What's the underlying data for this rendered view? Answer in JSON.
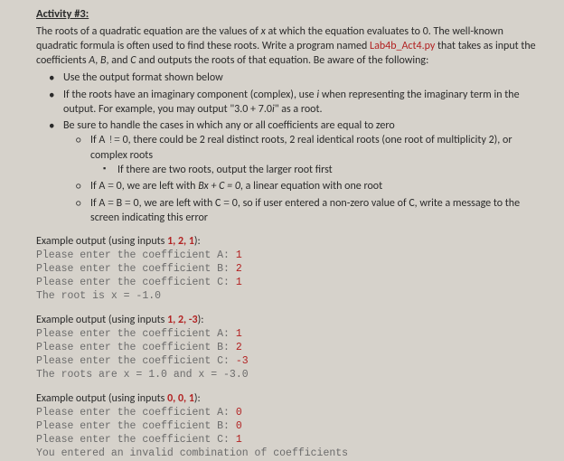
{
  "title": "Activity #3:",
  "intro_parts": {
    "p1": "The roots of a quadratic equation are the values of ",
    "x_var": "x",
    "p2": " at which the equation evaluates to 0. The well-known quadratic formula is often used to find these roots. Write a program named ",
    "filename": "Lab4b_Act4.py",
    "p3": " that takes as input the coefficients ",
    "A": "A",
    "c1": ", ",
    "B": "B",
    "c2": ", and ",
    "C": "C",
    "p4": " and outputs the roots of that equation. Be aware of the following:"
  },
  "bullets": {
    "b1": "Use the output format shown below",
    "b2_a": "If the roots have an imaginary component (complex), use ",
    "b2_i": "i",
    "b2_b": " when representing the imaginary term in the output. For example, you may output \"3.0 + 7.0",
    "b2_i2": "i",
    "b2_c": "\" as a root.",
    "b3": "Be sure to handle the cases in which any or all coefficients are equal to zero",
    "s1_a": "If A ",
    "s1_ne": "!=",
    "s1_b": " 0, there could be 2 real distinct roots, 2 real identical roots (one root of multiplicity 2), or complex roots",
    "s1_sub": "If there are two roots, output the larger root first",
    "s2_a": "If A ",
    "s2_eq": "=",
    "s2_b": " 0, we are left with ",
    "s2_eq2": "Bx + C = 0",
    "s2_c": ", a linear equation with one root",
    "s3_a": "If A ",
    "s3_eqa": "=",
    "s3_b": " B ",
    "s3_eqb": "=",
    "s3_c": " 0, we are left with C ",
    "s3_eqc": "=",
    "s3_d": " 0, so if user entered a non-zero value of C, write a message to the screen indicating this error"
  },
  "examples": [
    {
      "head_a": "Example output (using inputs ",
      "head_in": "1, 2, 1",
      "head_b": "):",
      "lines": [
        {
          "pre": "Please enter the coefficient A: ",
          "inp": "1"
        },
        {
          "pre": "Please enter the coefficient B: ",
          "inp": "2"
        },
        {
          "pre": "Please enter the coefficient C: ",
          "inp": "1"
        },
        {
          "pre": "The root is x = -1.0",
          "inp": ""
        }
      ]
    },
    {
      "head_a": "Example output (using inputs ",
      "head_in": "1, 2, -3",
      "head_b": "):",
      "lines": [
        {
          "pre": "Please enter the coefficient A: ",
          "inp": "1"
        },
        {
          "pre": "Please enter the coefficient B: ",
          "inp": "2"
        },
        {
          "pre": "Please enter the coefficient C: ",
          "inp": "-3"
        },
        {
          "pre": "The roots are x = 1.0 and x = -3.0",
          "inp": ""
        }
      ]
    },
    {
      "head_a": "Example output (using inputs ",
      "head_in": "0, 0, 1",
      "head_b": "):",
      "lines": [
        {
          "pre": "Please enter the coefficient A: ",
          "inp": "0"
        },
        {
          "pre": "Please enter the coefficient B: ",
          "inp": "0"
        },
        {
          "pre": "Please enter the coefficient C: ",
          "inp": "1"
        },
        {
          "pre": "You entered an invalid combination of coefficients",
          "inp": ""
        }
      ]
    }
  ]
}
